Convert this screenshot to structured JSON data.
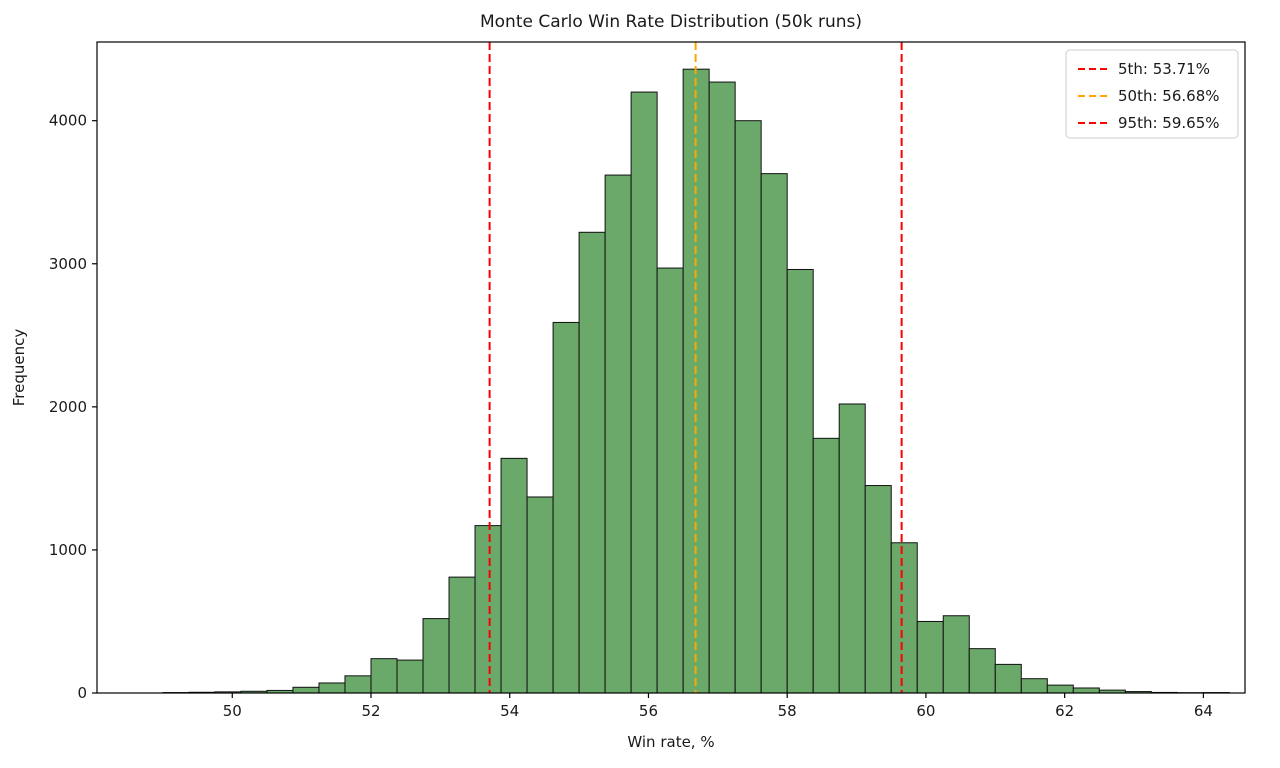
{
  "chart_data": {
    "type": "bar",
    "subtype": "histogram",
    "title": "Monte Carlo Win Rate Distribution (50k runs)",
    "xlabel": "Win rate, %",
    "ylabel": "Frequency",
    "bin_start": 49.0,
    "bin_width": 0.375,
    "values": [
      3,
      5,
      8,
      12,
      18,
      40,
      70,
      120,
      240,
      230,
      520,
      810,
      1170,
      1640,
      1370,
      2590,
      3220,
      3620,
      4200,
      2970,
      4360,
      4270,
      4000,
      3630,
      2960,
      1780,
      2020,
      1450,
      1050,
      500,
      540,
      310,
      200,
      100,
      55,
      35,
      20,
      10,
      4,
      2,
      3
    ],
    "xlim": [
      48.05,
      64.6
    ],
    "ylim": [
      0,
      4550
    ],
    "xticks": [
      50,
      52,
      54,
      56,
      58,
      60,
      62,
      64
    ],
    "yticks": [
      0,
      1000,
      2000,
      3000,
      4000
    ],
    "grid": false,
    "bar_color": "#6aa96a",
    "bar_edge_color": "#111111",
    "axis_color": "#000000",
    "legend_position": "upper right",
    "percentile_lines": [
      {
        "label": "5th: 53.71%",
        "value": 53.71,
        "color": "#ff0000",
        "style": "dashed"
      },
      {
        "label": "50th: 56.68%",
        "value": 56.68,
        "color": "#ffa500",
        "style": "dashed"
      },
      {
        "label": "95th: 59.65%",
        "value": 59.65,
        "color": "#ff0000",
        "style": "dashed"
      }
    ]
  }
}
